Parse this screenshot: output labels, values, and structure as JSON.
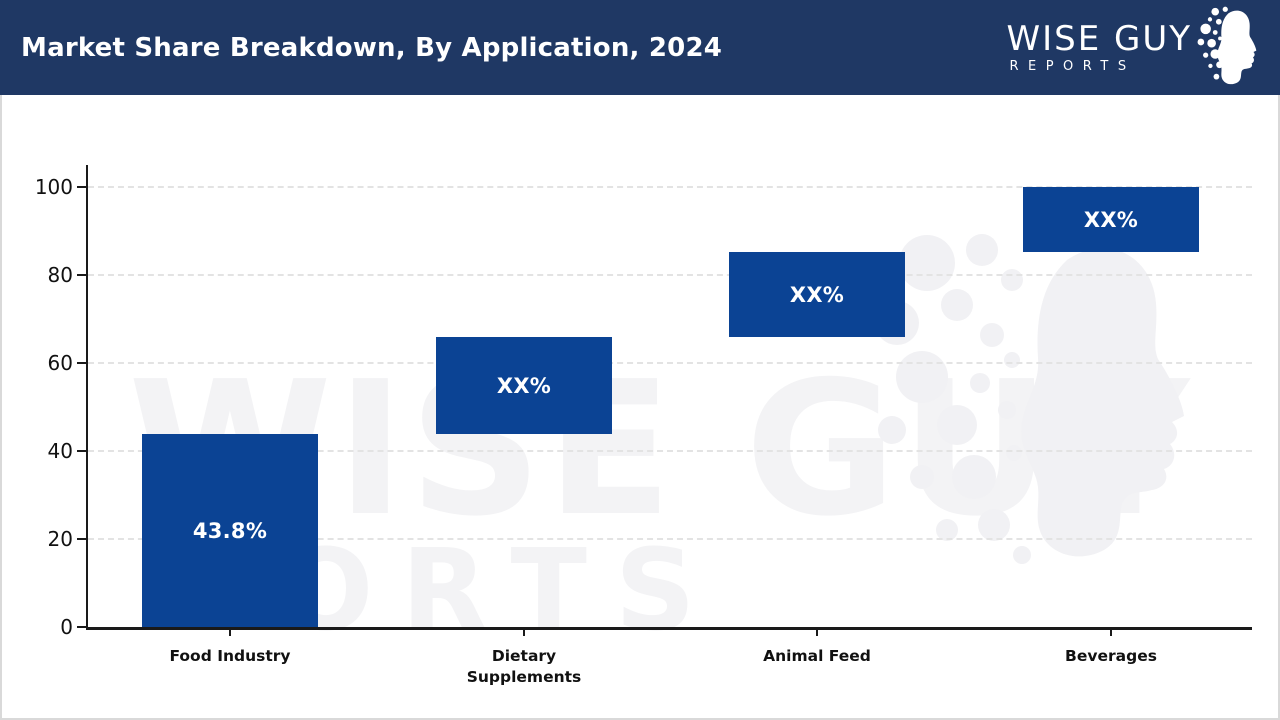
{
  "header": {
    "title": "Market Share Breakdown, By Application, 2024",
    "bg_color": "#1f3864",
    "logo": {
      "line1": "WISE GUY",
      "line2": "REPORTS"
    }
  },
  "watermark": {
    "line1": "WISE GUY",
    "line2": "PORTS",
    "head_icon": "dotted-face-profile"
  },
  "chart_data": {
    "type": "bar",
    "subtype": "stacked-waterfall-percentage",
    "title": "Market Share Breakdown, By Application, 2024",
    "categories": [
      "Food Industry",
      "Dietary\nSupplements",
      "Animal Feed",
      "Beverages"
    ],
    "series": [
      {
        "name": "Market Share",
        "segments": [
          {
            "category": "Food Industry",
            "start": 0,
            "end": 43.8,
            "label": "43.8%"
          },
          {
            "category": "Dietary Supplements",
            "start": 43.8,
            "end": 65.9,
            "label": "XX%"
          },
          {
            "category": "Animal Feed",
            "start": 65.9,
            "end": 85.2,
            "label": "XX%"
          },
          {
            "category": "Beverages",
            "start": 85.2,
            "end": 100,
            "label": "XX%"
          }
        ]
      }
    ],
    "xlabel": "",
    "ylabel": "",
    "ylim": [
      0,
      100
    ],
    "yticks": [
      0,
      20,
      40,
      60,
      80,
      100
    ],
    "grid": "horizontal dashed",
    "legend": "none",
    "bar_color": "#0b4394",
    "bar_label_color": "#ffffff",
    "axis_color": "#1a1a1a",
    "gridline_color": "#e3e3e3"
  }
}
